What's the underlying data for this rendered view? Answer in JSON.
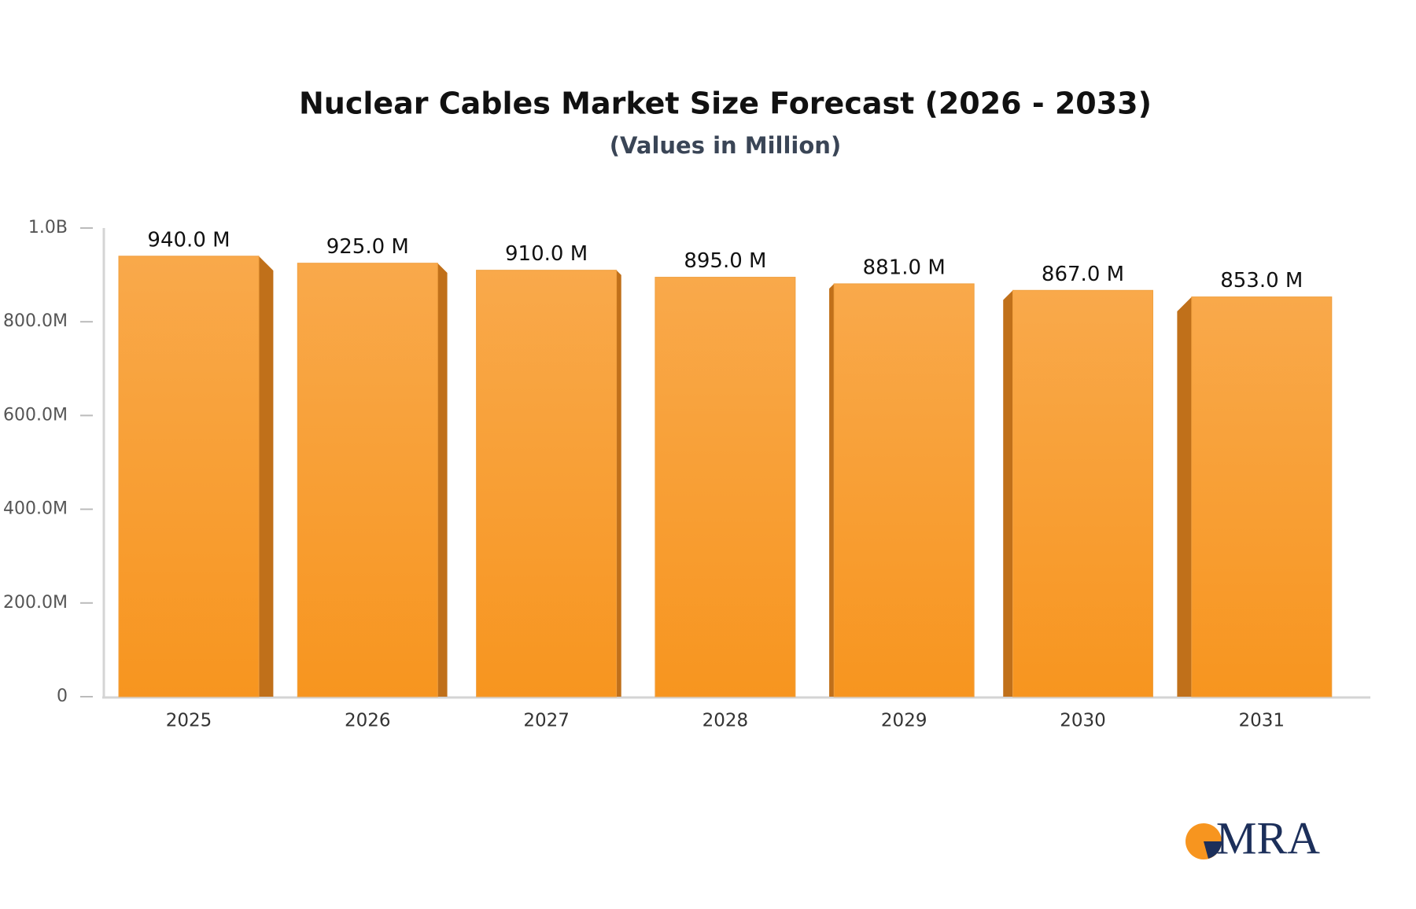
{
  "chart_data": {
    "type": "bar",
    "title": "Nuclear Cables Market Size Forecast (2026 - 2033)",
    "subtitle": "(Values in Million)",
    "categories": [
      "2025",
      "2026",
      "2027",
      "2028",
      "2029",
      "2030",
      "2031"
    ],
    "values": [
      940,
      925,
      910,
      895,
      881,
      867,
      853
    ],
    "value_labels": [
      "940.0 M",
      "925.0 M",
      "910.0 M",
      "895.0 M",
      "881.0 M",
      "867.0 M",
      "853.0 M"
    ],
    "color": "#f89a2a",
    "ylim": [
      0,
      1000
    ],
    "yticks": [
      0,
      {
        "value": 200,
        "label": "200.0M"
      },
      {
        "value": 400,
        "label": "400.0M"
      },
      {
        "value": 600,
        "label": "600.0M"
      },
      {
        "value": 800,
        "label": "800.0M"
      },
      {
        "value": 1000,
        "label": "1.0B"
      }
    ],
    "grid": false,
    "logo": "MRA"
  }
}
